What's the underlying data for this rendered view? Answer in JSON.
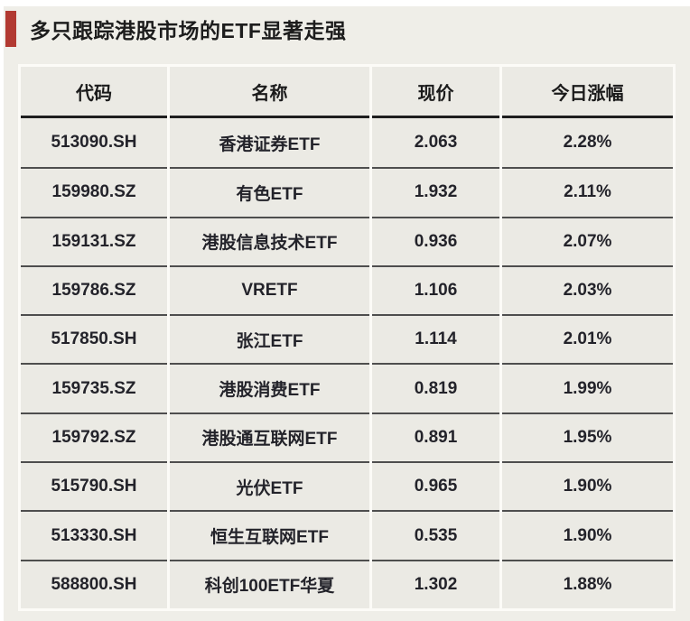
{
  "page": {
    "title": "多只跟踪港股市场的ETF显著走强",
    "accent_color": "#b23a32",
    "background_color": "#efeee8",
    "cell_color": "#ebeae4",
    "grid_line_color": "#4e4e4e"
  },
  "chart_data": {
    "type": "table",
    "title": "多只跟踪港股市场的ETF显著走强",
    "columns": [
      "代码",
      "名称",
      "现价",
      "今日涨幅"
    ],
    "rows": [
      {
        "code": "513090.SH",
        "name": "香港证券ETF",
        "price": "2.063",
        "change": "2.28%"
      },
      {
        "code": "159980.SZ",
        "name": "有色ETF",
        "price": "1.932",
        "change": "2.11%"
      },
      {
        "code": "159131.SZ",
        "name": "港股信息技术ETF",
        "price": "0.936",
        "change": "2.07%"
      },
      {
        "code": "159786.SZ",
        "name": "VRETF",
        "price": "1.106",
        "change": "2.03%"
      },
      {
        "code": "517850.SH",
        "name": "张江ETF",
        "price": "1.114",
        "change": "2.01%"
      },
      {
        "code": "159735.SZ",
        "name": "港股消费ETF",
        "price": "0.819",
        "change": "1.99%"
      },
      {
        "code": "159792.SZ",
        "name": "港股通互联网ETF",
        "price": "0.891",
        "change": "1.95%"
      },
      {
        "code": "515790.SH",
        "name": "光伏ETF",
        "price": "0.965",
        "change": "1.90%"
      },
      {
        "code": "513330.SH",
        "name": "恒生互联网ETF",
        "price": "0.535",
        "change": "1.90%"
      },
      {
        "code": "588800.SH",
        "name": "科创100ETF华夏",
        "price": "1.302",
        "change": "1.88%"
      }
    ]
  }
}
